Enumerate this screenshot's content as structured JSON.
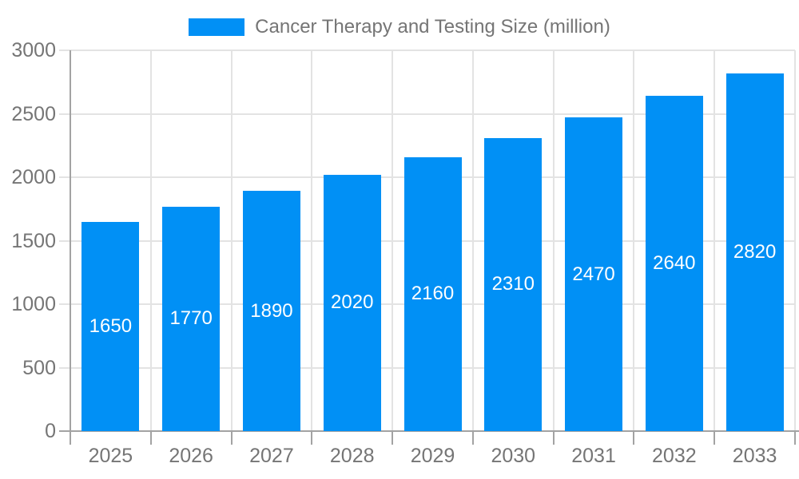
{
  "chart_data": {
    "type": "bar",
    "title": "Cancer Therapy and Testing Size (million)",
    "categories": [
      "2025",
      "2026",
      "2027",
      "2028",
      "2029",
      "2030",
      "2031",
      "2032",
      "2033"
    ],
    "series": [
      {
        "name": "Cancer Therapy and Testing Size (million)",
        "values": [
          1650,
          1770,
          1890,
          2020,
          2160,
          2310,
          2470,
          2640,
          2820
        ]
      }
    ],
    "value_labels_shown": true,
    "xlabel": "",
    "ylabel": "",
    "ylim": [
      0,
      3000
    ],
    "yticks": [
      0,
      500,
      1000,
      1500,
      2000,
      2500,
      3000
    ],
    "grid": true,
    "legend_position": "top",
    "colors": {
      "bar": "#0190F5",
      "value_label": "#FFFFFF",
      "axis_text": "#757575",
      "axis_line": "#A3A3A3",
      "gridline": "#E3E3E3",
      "background": "#FFFFFF"
    }
  }
}
